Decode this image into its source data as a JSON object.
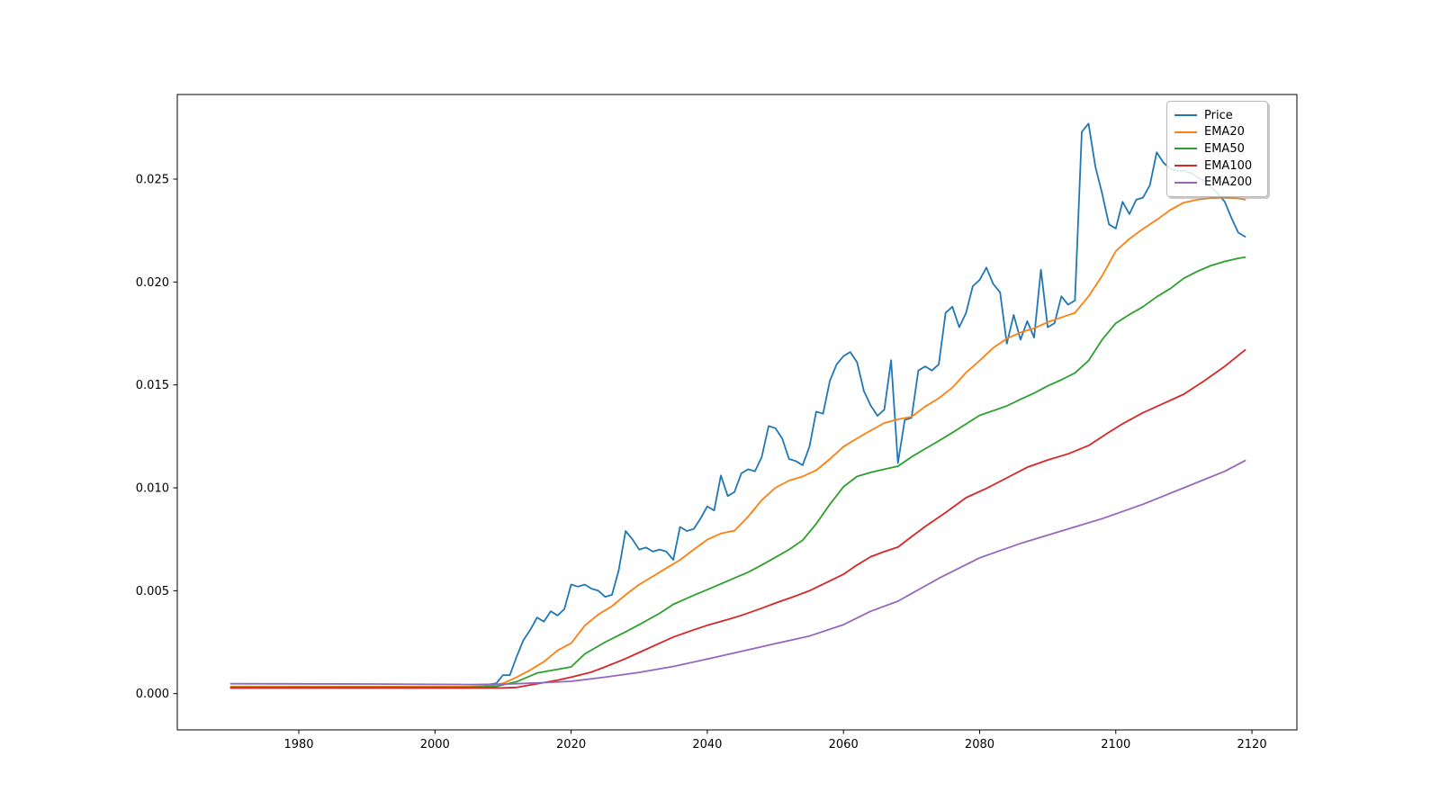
{
  "figure": {
    "background": "#ffffff",
    "plot_background": "#ffffff",
    "spine_color": "#000000"
  },
  "chart_data": {
    "type": "line",
    "title": "",
    "xlabel": "",
    "ylabel": "",
    "grid": false,
    "legend_position": "upper right",
    "x_range": [
      1962.5,
      2126.6
    ],
    "y_range": [
      -0.0018,
      0.0291
    ],
    "x_ticks": [
      {
        "label": "1980",
        "value": 1980
      },
      {
        "label": "2000",
        "value": 2000
      },
      {
        "label": "2020",
        "value": 2020
      },
      {
        "label": "2040",
        "value": 2040
      },
      {
        "label": "2060",
        "value": 2060
      },
      {
        "label": "2080",
        "value": 2080
      },
      {
        "label": "2100",
        "value": 2100
      },
      {
        "label": "2120",
        "value": 2120
      }
    ],
    "y_ticks": [
      {
        "label": "0.000",
        "value": 0.0
      },
      {
        "label": "0.005",
        "value": 0.005
      },
      {
        "label": "0.010",
        "value": 0.01
      },
      {
        "label": "0.015",
        "value": 0.015
      },
      {
        "label": "0.020",
        "value": 0.02
      },
      {
        "label": "0.025",
        "value": 0.025
      }
    ],
    "series": [
      {
        "name": "Price",
        "color": "#1f77b4",
        "x_start": 1970,
        "x_step": 1,
        "values": [
          0.0003,
          0.00033,
          0.0003,
          0.00028,
          0.00031,
          0.00029,
          0.00032,
          0.0003,
          0.00029,
          0.00031,
          0.0003,
          0.00032,
          0.00029,
          0.0003,
          0.00031,
          0.00029,
          0.0003,
          0.00032,
          0.0003,
          0.00029,
          0.00031,
          0.0003,
          0.00029,
          0.00031,
          0.0003,
          0.00032,
          0.0003,
          0.00029,
          0.0003,
          0.00031,
          0.0003,
          0.00029,
          0.00031,
          0.0003,
          0.00032,
          0.0003,
          0.00031,
          0.00035,
          0.00045,
          0.0005,
          0.0009,
          0.0009,
          0.0018,
          0.0026,
          0.0031,
          0.0037,
          0.0035,
          0.004,
          0.0038,
          0.0041,
          0.0053,
          0.0052,
          0.0053,
          0.0051,
          0.005,
          0.0047,
          0.0048,
          0.006,
          0.0079,
          0.0075,
          0.007,
          0.0071,
          0.0069,
          0.007,
          0.0069,
          0.0065,
          0.0081,
          0.0079,
          0.008,
          0.0085,
          0.0091,
          0.0089,
          0.0106,
          0.0096,
          0.0098,
          0.0107,
          0.0109,
          0.0108,
          0.0115,
          0.013,
          0.0129,
          0.0124,
          0.0114,
          0.0113,
          0.0111,
          0.012,
          0.0137,
          0.0136,
          0.0152,
          0.016,
          0.0164,
          0.0166,
          0.0161,
          0.0147,
          0.014,
          0.0135,
          0.0138,
          0.0162,
          0.0112,
          0.0133,
          0.0134,
          0.0157,
          0.0159,
          0.0157,
          0.016,
          0.0185,
          0.0188,
          0.0178,
          0.0185,
          0.0198,
          0.0201,
          0.0207,
          0.0199,
          0.0195,
          0.017,
          0.0184,
          0.0172,
          0.0181,
          0.0173,
          0.0206,
          0.0178,
          0.018,
          0.0193,
          0.0189,
          0.0191,
          0.0273,
          0.0277,
          0.0256,
          0.0243,
          0.0228,
          0.0226,
          0.0239,
          0.0233,
          0.024,
          0.0241,
          0.0247,
          0.0263,
          0.0258,
          0.0255,
          0.0254,
          0.0254,
          0.0253,
          0.0251,
          0.0249,
          0.0246,
          0.0243,
          0.0239,
          0.0231,
          0.0224,
          0.0222
        ]
      },
      {
        "name": "EMA20",
        "color": "#ff7f0e",
        "points": [
          [
            1970,
            0.00034
          ],
          [
            1990,
            0.00034
          ],
          [
            2005,
            0.00034
          ],
          [
            2008,
            0.00038
          ],
          [
            2010,
            0.0005
          ],
          [
            2012,
            0.0008
          ],
          [
            2014,
            0.00115
          ],
          [
            2016,
            0.00155
          ],
          [
            2018,
            0.0021
          ],
          [
            2020,
            0.00245
          ],
          [
            2022,
            0.0033
          ],
          [
            2024,
            0.00385
          ],
          [
            2026,
            0.00425
          ],
          [
            2028,
            0.0048
          ],
          [
            2030,
            0.0053
          ],
          [
            2032,
            0.0057
          ],
          [
            2034,
            0.0061
          ],
          [
            2036,
            0.0065
          ],
          [
            2038,
            0.007
          ],
          [
            2040,
            0.00748
          ],
          [
            2042,
            0.00778
          ],
          [
            2044,
            0.00792
          ],
          [
            2046,
            0.0086
          ],
          [
            2048,
            0.0094
          ],
          [
            2050,
            0.01
          ],
          [
            2052,
            0.01035
          ],
          [
            2054,
            0.01055
          ],
          [
            2056,
            0.01085
          ],
          [
            2058,
            0.0114
          ],
          [
            2060,
            0.012
          ],
          [
            2062,
            0.0124
          ],
          [
            2064,
            0.01278
          ],
          [
            2066,
            0.01315
          ],
          [
            2068,
            0.01333
          ],
          [
            2070,
            0.01345
          ],
          [
            2072,
            0.01395
          ],
          [
            2074,
            0.01435
          ],
          [
            2076,
            0.01487
          ],
          [
            2078,
            0.0156
          ],
          [
            2080,
            0.01618
          ],
          [
            2082,
            0.0168
          ],
          [
            2084,
            0.01725
          ],
          [
            2086,
            0.01755
          ],
          [
            2088,
            0.01775
          ],
          [
            2090,
            0.01805
          ],
          [
            2092,
            0.01828
          ],
          [
            2094,
            0.0185
          ],
          [
            2096,
            0.0193
          ],
          [
            2098,
            0.0203
          ],
          [
            2100,
            0.0215
          ],
          [
            2102,
            0.0221
          ],
          [
            2104,
            0.02258
          ],
          [
            2106,
            0.02302
          ],
          [
            2108,
            0.0235
          ],
          [
            2110,
            0.02386
          ],
          [
            2112,
            0.024
          ],
          [
            2114,
            0.02408
          ],
          [
            2116,
            0.0241
          ],
          [
            2118,
            0.02406
          ],
          [
            2119,
            0.024
          ]
        ]
      },
      {
        "name": "EMA50",
        "color": "#2ca02c",
        "points": [
          [
            1970,
            0.00031
          ],
          [
            2005,
            0.00031
          ],
          [
            2009,
            0.00035
          ],
          [
            2012,
            0.00058
          ],
          [
            2015,
            0.001
          ],
          [
            2018,
            0.00118
          ],
          [
            2020,
            0.0013
          ],
          [
            2022,
            0.00193
          ],
          [
            2025,
            0.0025
          ],
          [
            2028,
            0.003
          ],
          [
            2030,
            0.00335
          ],
          [
            2033,
            0.0039
          ],
          [
            2035,
            0.00434
          ],
          [
            2038,
            0.00478
          ],
          [
            2040,
            0.00505
          ],
          [
            2043,
            0.00548
          ],
          [
            2046,
            0.0059
          ],
          [
            2048,
            0.00625
          ],
          [
            2050,
            0.00662
          ],
          [
            2052,
            0.007
          ],
          [
            2054,
            0.00745
          ],
          [
            2056,
            0.00825
          ],
          [
            2058,
            0.0092
          ],
          [
            2060,
            0.01005
          ],
          [
            2062,
            0.01055
          ],
          [
            2064,
            0.01075
          ],
          [
            2066,
            0.0109
          ],
          [
            2068,
            0.01105
          ],
          [
            2070,
            0.0115
          ],
          [
            2072,
            0.0119
          ],
          [
            2074,
            0.01228
          ],
          [
            2076,
            0.01268
          ],
          [
            2078,
            0.0131
          ],
          [
            2080,
            0.01352
          ],
          [
            2082,
            0.01375
          ],
          [
            2084,
            0.01398
          ],
          [
            2086,
            0.0143
          ],
          [
            2088,
            0.0146
          ],
          [
            2090,
            0.01495
          ],
          [
            2092,
            0.01525
          ],
          [
            2094,
            0.01558
          ],
          [
            2096,
            0.01618
          ],
          [
            2098,
            0.0172
          ],
          [
            2100,
            0.018
          ],
          [
            2102,
            0.01842
          ],
          [
            2104,
            0.0188
          ],
          [
            2106,
            0.01928
          ],
          [
            2108,
            0.01968
          ],
          [
            2110,
            0.02018
          ],
          [
            2112,
            0.02052
          ],
          [
            2114,
            0.0208
          ],
          [
            2116,
            0.021
          ],
          [
            2118,
            0.02115
          ],
          [
            2119,
            0.0212
          ]
        ]
      },
      {
        "name": "EMA100",
        "color": "#d62728",
        "points": [
          [
            1970,
            0.00027
          ],
          [
            2005,
            0.00027
          ],
          [
            2010,
            0.00028
          ],
          [
            2012,
            0.0003
          ],
          [
            2015,
            0.00048
          ],
          [
            2018,
            0.00065
          ],
          [
            2020,
            0.0008
          ],
          [
            2023,
            0.00105
          ],
          [
            2025,
            0.0013
          ],
          [
            2028,
            0.0017
          ],
          [
            2030,
            0.002
          ],
          [
            2033,
            0.00245
          ],
          [
            2035,
            0.00275
          ],
          [
            2038,
            0.0031
          ],
          [
            2040,
            0.00332
          ],
          [
            2043,
            0.0036
          ],
          [
            2045,
            0.0038
          ],
          [
            2048,
            0.00415
          ],
          [
            2050,
            0.0044
          ],
          [
            2053,
            0.00475
          ],
          [
            2055,
            0.005
          ],
          [
            2058,
            0.00548
          ],
          [
            2060,
            0.0058
          ],
          [
            2062,
            0.00625
          ],
          [
            2064,
            0.00665
          ],
          [
            2066,
            0.0069
          ],
          [
            2068,
            0.00712
          ],
          [
            2070,
            0.00762
          ],
          [
            2072,
            0.00812
          ],
          [
            2075,
            0.0088
          ],
          [
            2078,
            0.00952
          ],
          [
            2081,
            0.00997
          ],
          [
            2084,
            0.01048
          ],
          [
            2087,
            0.011
          ],
          [
            2090,
            0.01135
          ],
          [
            2093,
            0.01165
          ],
          [
            2096,
            0.01205
          ],
          [
            2099,
            0.0127
          ],
          [
            2101,
            0.01311
          ],
          [
            2104,
            0.01365
          ],
          [
            2107,
            0.0141
          ],
          [
            2110,
            0.01455
          ],
          [
            2113,
            0.0152
          ],
          [
            2116,
            0.0159
          ],
          [
            2119,
            0.0167
          ]
        ]
      },
      {
        "name": "EMA200",
        "color": "#9467bd",
        "points": [
          [
            1970,
            0.00048
          ],
          [
            1990,
            0.00047
          ],
          [
            2005,
            0.00044
          ],
          [
            2010,
            0.00046
          ],
          [
            2015,
            0.00052
          ],
          [
            2020,
            0.0006
          ],
          [
            2025,
            0.0008
          ],
          [
            2030,
            0.00103
          ],
          [
            2035,
            0.00132
          ],
          [
            2040,
            0.00168
          ],
          [
            2045,
            0.00205
          ],
          [
            2050,
            0.00243
          ],
          [
            2055,
            0.0028
          ],
          [
            2060,
            0.00335
          ],
          [
            2064,
            0.004
          ],
          [
            2068,
            0.00449
          ],
          [
            2074,
            0.0056
          ],
          [
            2080,
            0.0066
          ],
          [
            2086,
            0.0073
          ],
          [
            2092,
            0.0079
          ],
          [
            2098,
            0.0085
          ],
          [
            2104,
            0.0092
          ],
          [
            2110,
            0.01
          ],
          [
            2116,
            0.0108
          ],
          [
            2119,
            0.01132
          ]
        ]
      }
    ]
  }
}
